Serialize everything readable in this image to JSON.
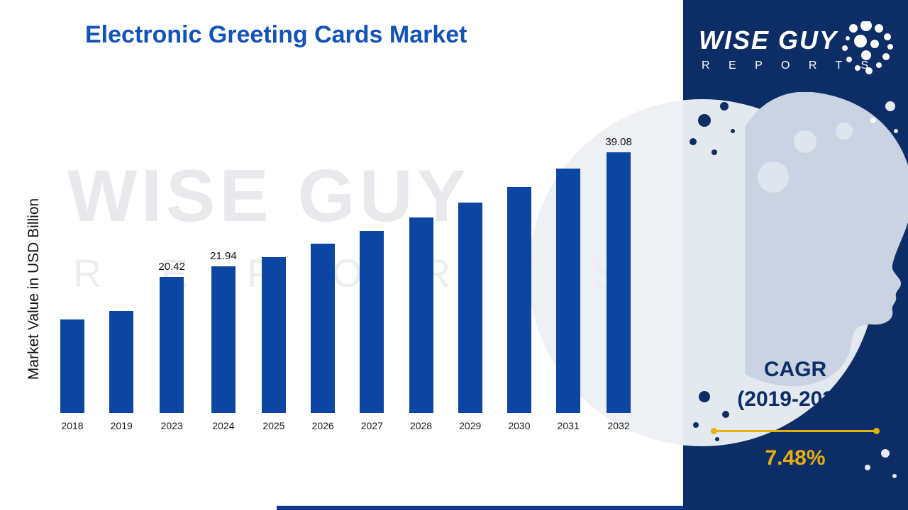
{
  "title": "Electronic Greeting Cards Market",
  "y_axis_label": "Market Value in USD Billion",
  "watermark": {
    "line1": "WISE GUY",
    "line2": "R E P O R T S"
  },
  "logo": {
    "line1": "WISE GUY",
    "line2": "R E P O R T S"
  },
  "cagr": {
    "label": "CAGR",
    "range": "(2019-2032)",
    "value": "7.48%"
  },
  "colors": {
    "bar": "#0c45a2",
    "title": "#1353b8",
    "panel": "#0c2d66",
    "gold": "#e8b00e"
  },
  "chart_data": {
    "type": "bar",
    "title": "Electronic Greeting Cards Market",
    "xlabel": "",
    "ylabel": "Market Value in USD Billion",
    "categories": [
      "2018",
      "2019",
      "2023",
      "2024",
      "2025",
      "2026",
      "2027",
      "2028",
      "2029",
      "2030",
      "2031",
      "2032"
    ],
    "values": [
      14.0,
      15.3,
      20.42,
      21.94,
      23.4,
      25.4,
      27.3,
      29.3,
      31.5,
      33.9,
      36.6,
      39.08
    ],
    "data_labels": [
      "",
      "",
      "20.42",
      "21.94",
      "",
      "",
      "",
      "",
      "",
      "",
      "",
      "39.08"
    ],
    "ylim": [
      0,
      42
    ],
    "grid": false,
    "legend": "none",
    "bar_color": "#0c45a2"
  }
}
